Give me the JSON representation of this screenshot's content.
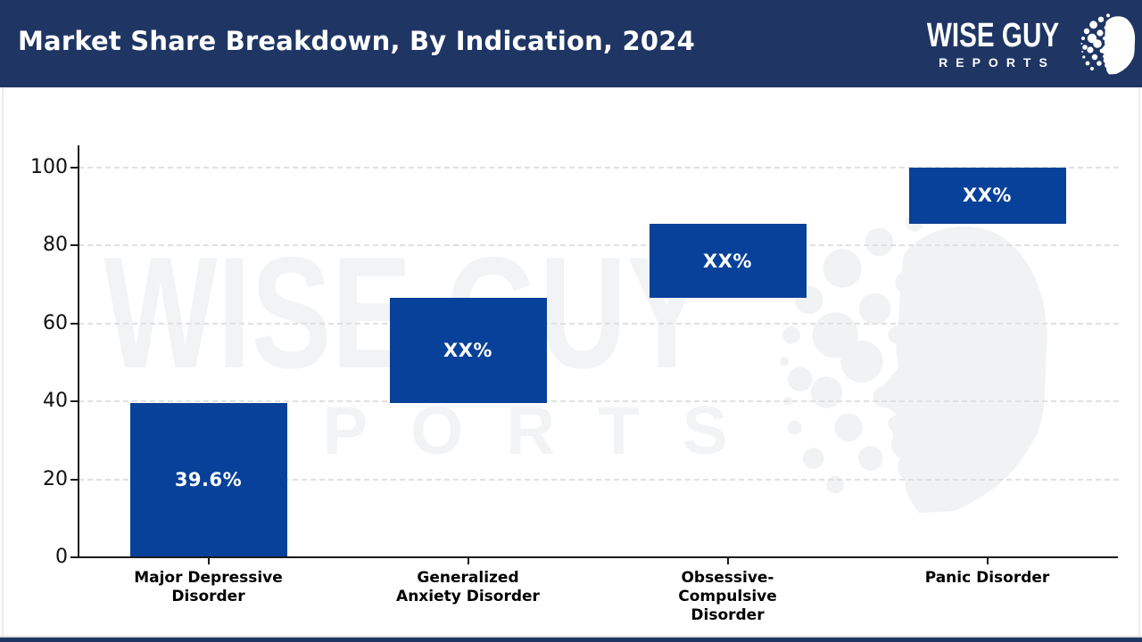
{
  "header": {
    "title": "Market Share Breakdown, By Indication, 2024",
    "logo": {
      "wordmark": "WISE GUY",
      "subtitle": "REPORTS"
    }
  },
  "watermark": {
    "wordmark": "WISE GUY",
    "subtitle": "REPORTS"
  },
  "chart_data": {
    "type": "bar",
    "variant": "stepped-floating-segments",
    "title": "Market Share Breakdown, By Indication, 2024",
    "categories": [
      "Major Depressive\nDisorder",
      "Generalized\nAnxiety Disorder",
      "Obsessive-\nCompulsive\nDisorder",
      "Panic Disorder"
    ],
    "segments": [
      {
        "category": "Major Depressive Disorder",
        "start": 0,
        "end": 39.6,
        "value_label": "39.6%"
      },
      {
        "category": "Generalized Anxiety Disorder",
        "start": 39.6,
        "end": 66.5,
        "value_label": "XX%"
      },
      {
        "category": "Obsessive-Compulsive Disorder",
        "start": 66.5,
        "end": 85.5,
        "value_label": "XX%"
      },
      {
        "category": "Panic Disorder",
        "start": 85.5,
        "end": 100,
        "value_label": "XX%"
      }
    ],
    "yticks": [
      0,
      20,
      40,
      60,
      80,
      100
    ],
    "ylim": [
      0,
      105.7
    ],
    "xlabel": "",
    "ylabel": "",
    "grid": "horizontal-dashed",
    "legend_position": "none",
    "bar_color": "#084199"
  },
  "colors": {
    "header_navy": "#1f3664",
    "bar_blue": "#084199",
    "gridline": "#e0e0e0",
    "axis": "#1a1a1a",
    "watermark": "#f2f3f5",
    "value_label_text": "#ffffff",
    "category_label_text": "#000000"
  }
}
